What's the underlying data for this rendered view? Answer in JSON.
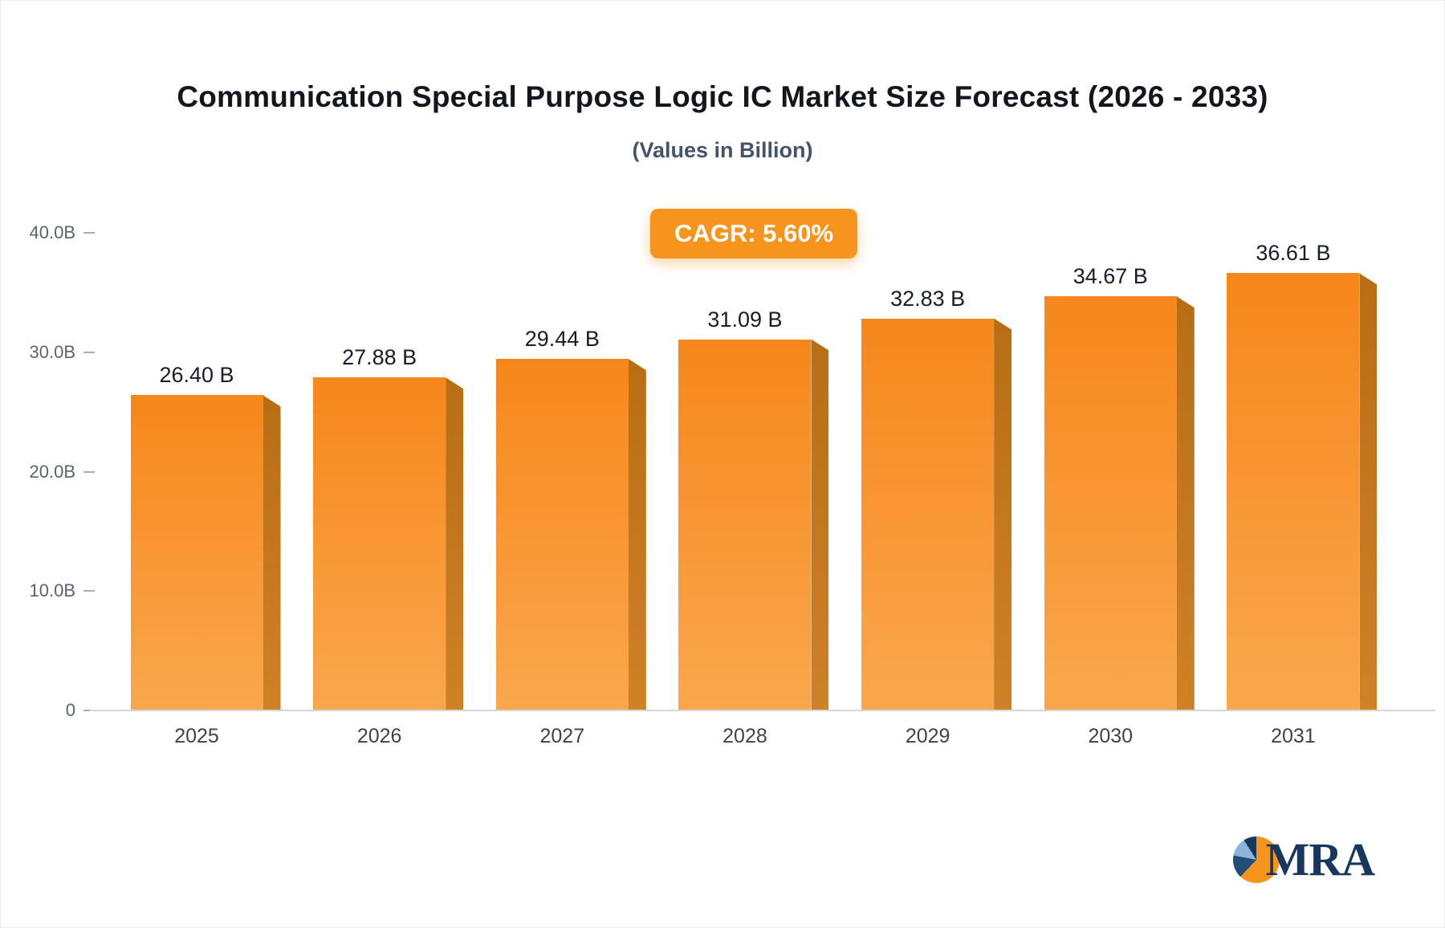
{
  "chart_data": {
    "type": "bar",
    "title": "Communication Special Purpose Logic IC Market Size Forecast (2026 - 2033)",
    "subtitle": "(Values in Billion)",
    "badge": "CAGR: 5.60%",
    "categories": [
      "2025",
      "2026",
      "2027",
      "2028",
      "2029",
      "2030",
      "2031"
    ],
    "values": [
      26.4,
      27.88,
      29.44,
      31.09,
      32.83,
      34.67,
      36.61
    ],
    "labels": [
      "26.40 B",
      "27.88 B",
      "29.44 B",
      "31.09 B",
      "32.83 B",
      "34.67 B",
      "36.61 B"
    ],
    "xlabel": "",
    "ylabel": "",
    "ylim": [
      0,
      40
    ],
    "yticks": [
      "40.0B",
      "30.0B",
      "20.0B",
      "10.0B",
      "0"
    ],
    "grid": false,
    "legend": false
  },
  "logo": {
    "text": "MRA"
  },
  "colors": {
    "accent": "#f7941e",
    "bar_top": "#f6871b",
    "bar_bottom": "#f9a74d",
    "bar_side_top": "#b86e14",
    "bar_side_bottom": "#cf8126",
    "logo_navy": "#17375e"
  }
}
